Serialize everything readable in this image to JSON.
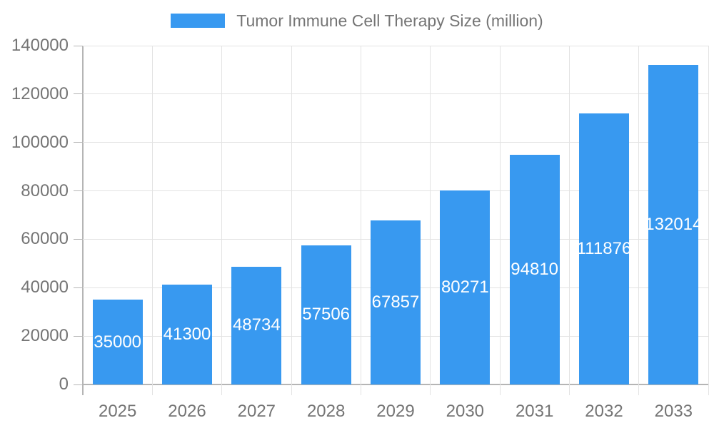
{
  "chart_data": {
    "type": "bar",
    "title": "Tumor Immune Cell Therapy Size (million)",
    "categories": [
      "2025",
      "2026",
      "2027",
      "2028",
      "2029",
      "2030",
      "2031",
      "2032",
      "2033"
    ],
    "values": [
      35000,
      41300,
      48734,
      57506,
      67857,
      80271,
      94810,
      111876,
      132014
    ],
    "xlabel": "",
    "ylabel": "",
    "ylim": [
      0,
      140000
    ],
    "y_ticks": [
      0,
      20000,
      40000,
      60000,
      80000,
      100000,
      120000,
      140000
    ],
    "grid": true,
    "legend_position": "top",
    "value_labels_position": "inside-center",
    "bar_color": "#3899F0",
    "value_label_color": "#ffffff",
    "axis_text_color": "#757575",
    "grid_color": "#e3e3e3",
    "axis_line_color": "#b5b5b5",
    "background_color": "#ffffff"
  }
}
